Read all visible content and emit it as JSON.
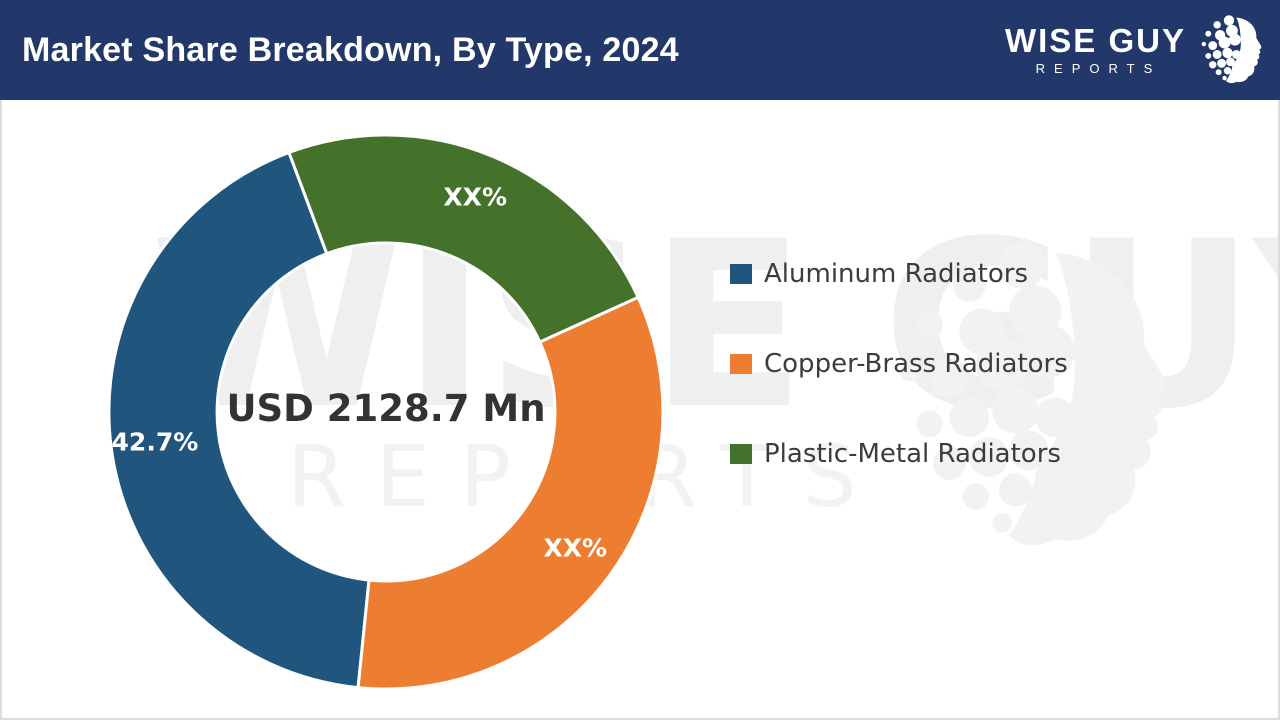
{
  "header": {
    "title": "Market Share Breakdown, By Type, 2024",
    "bg_color": "#22386A",
    "logo": {
      "brand": "WISE GUY",
      "sub": "REPORTS"
    }
  },
  "watermark": {
    "big_text": "WISE GUY",
    "sub_text": "REPORTS"
  },
  "chart_data": {
    "type": "pie",
    "subtype": "donut",
    "title": "Market Share Breakdown, By Type, 2024",
    "center_label": "USD 2128.7 Mn",
    "legend_position": "right",
    "grid": false,
    "start_angle_deg": 110.5,
    "direction": "counterclockwise",
    "donut_hole_ratio": 0.61,
    "slices": [
      {
        "label": "Aluminum Radiators",
        "pct_label": "42.7%",
        "pct_value": 42.7,
        "color": "#20567E"
      },
      {
        "label": "Copper-Brass Radiators",
        "pct_label": "XX%",
        "pct_value": 33.4,
        "color": "#ED7D31"
      },
      {
        "label": "Plastic-Metal Radiators",
        "pct_label": "XX%",
        "pct_value": 23.9,
        "color": "#44722A"
      }
    ]
  }
}
